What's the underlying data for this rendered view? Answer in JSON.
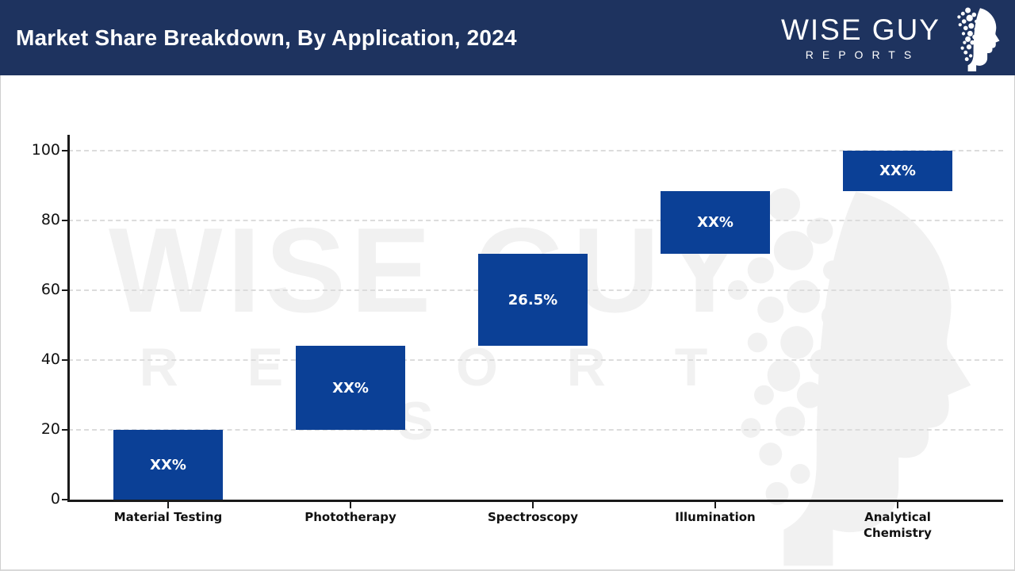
{
  "header": {
    "title": "Market Share Breakdown, By Application, 2024",
    "brand": {
      "line1": "WISE GUY",
      "line2": "REPORTS"
    },
    "bg_color": "#1e335f"
  },
  "watermark": {
    "line1": "WISE GUY",
    "line2": "REPORTS"
  },
  "chart_data": {
    "type": "bar",
    "subtype": "waterfall",
    "title": "Market Share Breakdown, By Application, 2024",
    "xlabel": "",
    "ylabel": "",
    "categories": [
      "Material Testing",
      "Phototherapy",
      "Spectroscopy",
      "Illumination",
      "Analytical Chemistry"
    ],
    "segments": [
      {
        "category": "Material Testing",
        "start": 0,
        "end": 20,
        "value_label": "XX%",
        "estimated_value": 20
      },
      {
        "category": "Phototherapy",
        "start": 20,
        "end": 44,
        "value_label": "XX%",
        "estimated_value": 24
      },
      {
        "category": "Spectroscopy",
        "start": 44,
        "end": 70.5,
        "value_label": "26.5%",
        "estimated_value": 26.5
      },
      {
        "category": "Illumination",
        "start": 70.5,
        "end": 88.5,
        "value_label": "XX%",
        "estimated_value": 18
      },
      {
        "category": "Analytical Chemistry",
        "start": 88.5,
        "end": 100,
        "value_label": "XX%",
        "estimated_value": 11.5
      }
    ],
    "yticks": [
      0,
      20,
      40,
      60,
      80,
      100
    ],
    "ylim": [
      0,
      104
    ],
    "grid": "horizontal-dashed",
    "legend": "none",
    "colors": {
      "bar": "#0b4096",
      "axis": "#1a1a1a",
      "gridline": "#dcdcdc",
      "tick_text": "#111111",
      "value_text": "#ffffff",
      "watermark": "#f1f1f1"
    }
  }
}
